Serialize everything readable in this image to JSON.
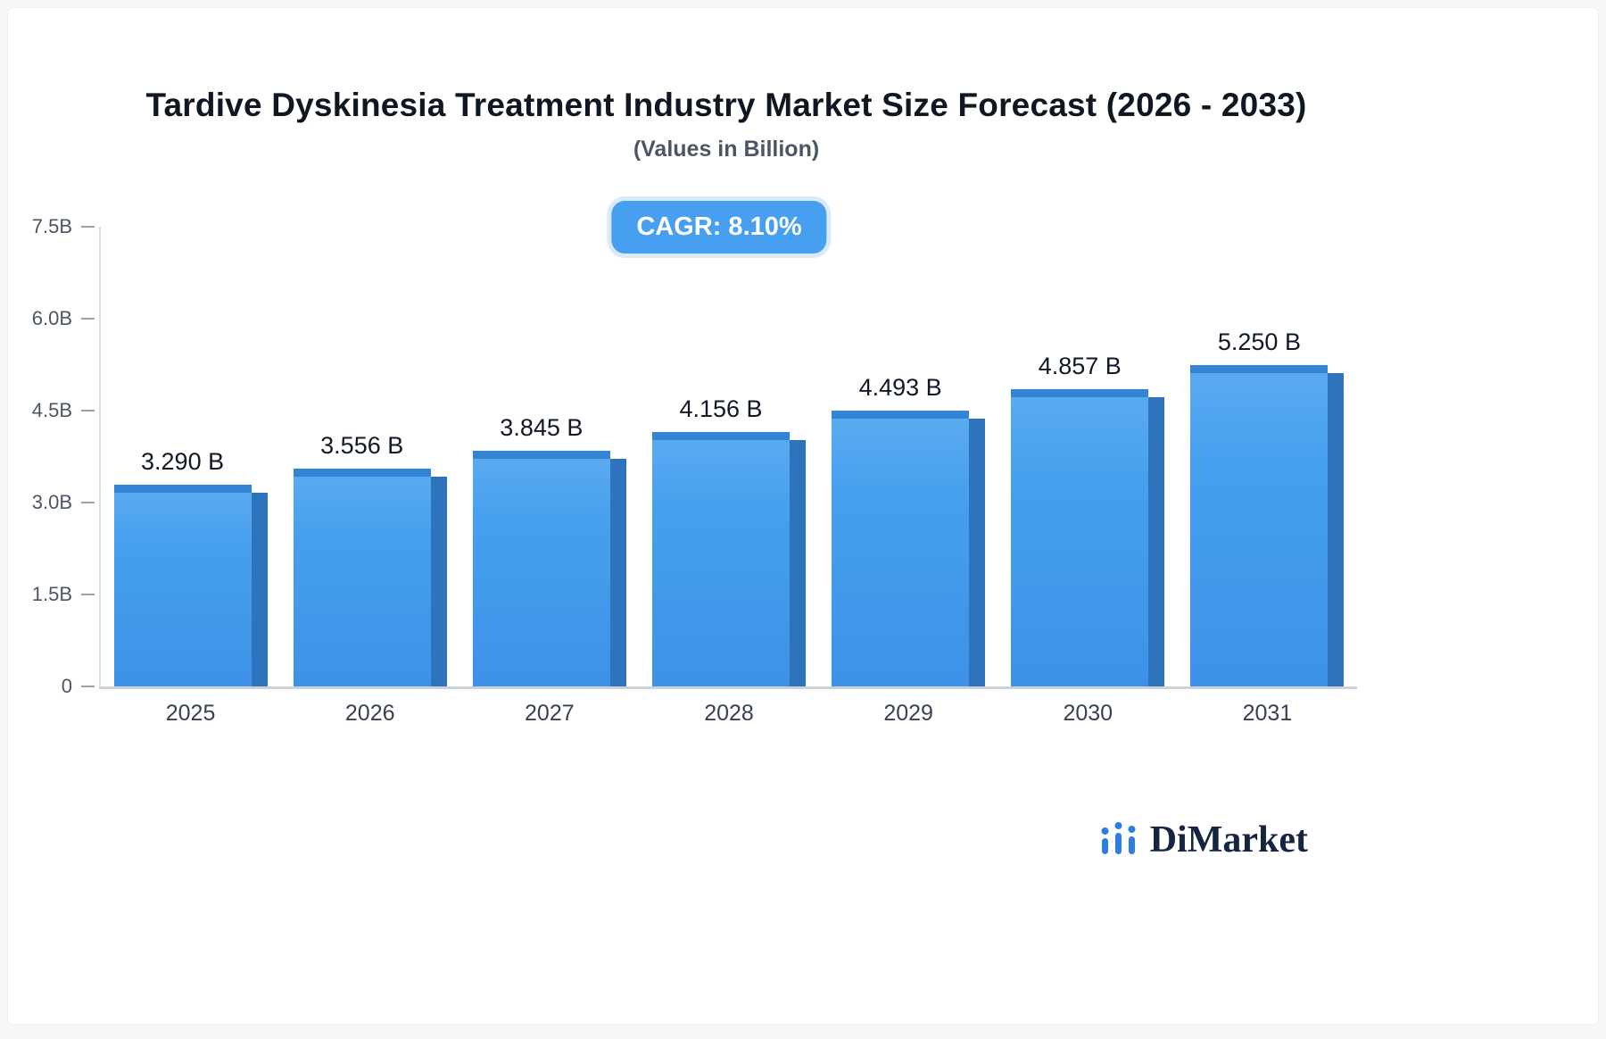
{
  "header": {
    "title": "Tardive Dyskinesia Treatment Industry Market Size Forecast (2026 - 2033)",
    "subtitle": "(Values in Billion)",
    "cagr_badge": "CAGR: 8.10%"
  },
  "chart_data": {
    "type": "bar",
    "title": "Tardive Dyskinesia Treatment Industry Market Size Forecast (2026 - 2033)",
    "subtitle": "(Values in Billion)",
    "annotation": "CAGR: 8.10%",
    "categories": [
      "2025",
      "2026",
      "2027",
      "2028",
      "2029",
      "2030",
      "2031"
    ],
    "values": [
      3.29,
      3.556,
      3.845,
      4.156,
      4.493,
      4.857,
      5.25
    ],
    "value_labels": [
      "3.290 B",
      "3.556 B",
      "3.845 B",
      "4.156 B",
      "4.493 B",
      "4.857 B",
      "5.250 B"
    ],
    "xlabel": "",
    "ylabel": "",
    "ylim": [
      0,
      7.5
    ],
    "y_ticks": [
      {
        "value": 0,
        "label": "0"
      },
      {
        "value": 1.5,
        "label": "1.5B"
      },
      {
        "value": 3.0,
        "label": "3.0B"
      },
      {
        "value": 4.5,
        "label": "4.5B"
      },
      {
        "value": 6.0,
        "label": "6.0B"
      },
      {
        "value": 7.5,
        "label": "7.5B"
      }
    ],
    "grid": false,
    "legend_position": "none",
    "bar_color": "#3F93E8",
    "bar_side_color": "#2D74BD",
    "badge_color": "#479FEF"
  },
  "brand": {
    "name": "DiMarket",
    "icon": "bar-chart-logo-icon",
    "accent_color": "#2E7DE2"
  }
}
